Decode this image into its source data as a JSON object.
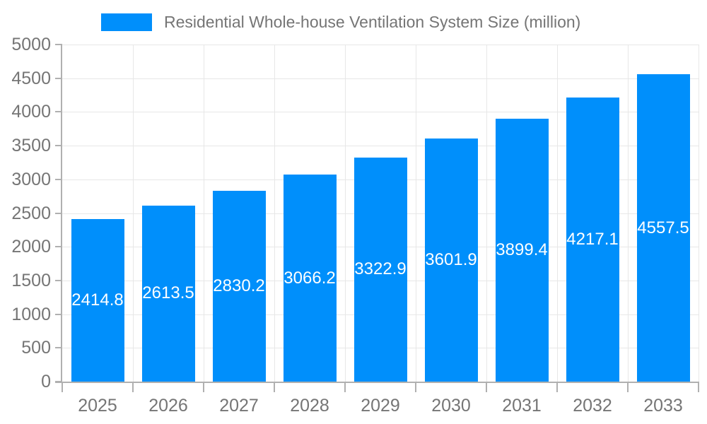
{
  "legend": {
    "label": "Residential Whole-house Ventilation System Size (million)"
  },
  "chart_data": {
    "type": "bar",
    "title": "Residential Whole-house Ventilation System Size (million)",
    "categories": [
      "2025",
      "2026",
      "2027",
      "2028",
      "2029",
      "2030",
      "2031",
      "2032",
      "2033"
    ],
    "values": [
      2414.8,
      2613.5,
      2830.2,
      3066.2,
      3322.9,
      3601.9,
      3899.4,
      4217.1,
      4557.5
    ],
    "value_labels": [
      "2414.8",
      "2613.5",
      "2830.2",
      "3066.2",
      "3322.9",
      "3601.9",
      "3899.4",
      "4217.1",
      "4557.5"
    ],
    "ytick_labels": [
      "0",
      "500",
      "1000",
      "1500",
      "2000",
      "2500",
      "3000",
      "3500",
      "4000",
      "4500",
      "5000"
    ],
    "xlabel": "",
    "ylabel": "",
    "ylim": [
      0,
      5000
    ],
    "ytick_step": 500,
    "grid": true,
    "legend_position": "top",
    "colors": {
      "bar": "#008FFB",
      "value_label": "#ffffff",
      "axis_text": "#757575",
      "grid_line": "#e7e7e7",
      "axis_line": "#b0b0b0"
    }
  }
}
